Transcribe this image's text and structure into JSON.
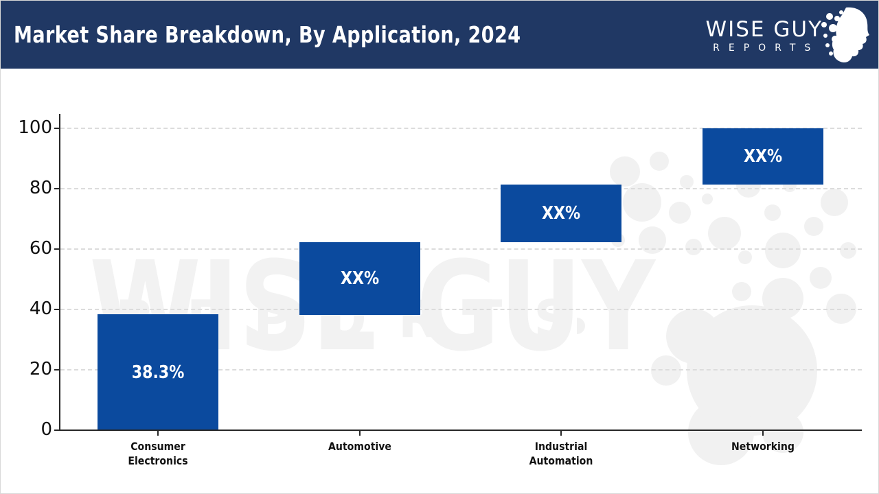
{
  "header": {
    "title": "Market Share Breakdown, By Application, 2024",
    "logo_line1": "WISE GUY",
    "logo_line2": "REPORTS"
  },
  "watermark": {
    "line1": "WISE GUY",
    "line2": "REPORTS"
  },
  "chart_data": {
    "type": "bar",
    "variant": "floating-waterfall",
    "title": "Market Share Breakdown, By Application, 2024",
    "categories": [
      "Consumer Electronics",
      "Automotive",
      "Industrial Automation",
      "Networking"
    ],
    "category_label_lines": [
      [
        "Consumer",
        "Electronics"
      ],
      [
        "Automotive"
      ],
      [
        "Industrial",
        "Automation"
      ],
      [
        "Networking"
      ]
    ],
    "bars": [
      {
        "category": "Consumer Electronics",
        "start": 0,
        "end": 38.3,
        "label": "38.3%"
      },
      {
        "category": "Automotive",
        "start": 38.3,
        "end": 62.3,
        "label": "XX%"
      },
      {
        "category": "Industrial Automation",
        "start": 62.3,
        "end": 81.4,
        "label": "XX%"
      },
      {
        "category": "Networking",
        "start": 81.4,
        "end": 100,
        "label": "XX%"
      }
    ],
    "xlabel": "",
    "ylabel": "",
    "ylim": [
      0,
      100
    ],
    "yticks": [
      0,
      20,
      40,
      60,
      80,
      100
    ],
    "grid": {
      "horizontal": true,
      "style": "dashed"
    },
    "legend": "none",
    "colors": {
      "bar": "#0b4a9e",
      "bar_label": "#ffffff",
      "axis": "#262626",
      "gridline": "#dcdcdc",
      "tick_label": "#111111",
      "header_bg": "#203864",
      "watermark": "#f2f2f2",
      "page_bg": "#ffffff"
    }
  }
}
